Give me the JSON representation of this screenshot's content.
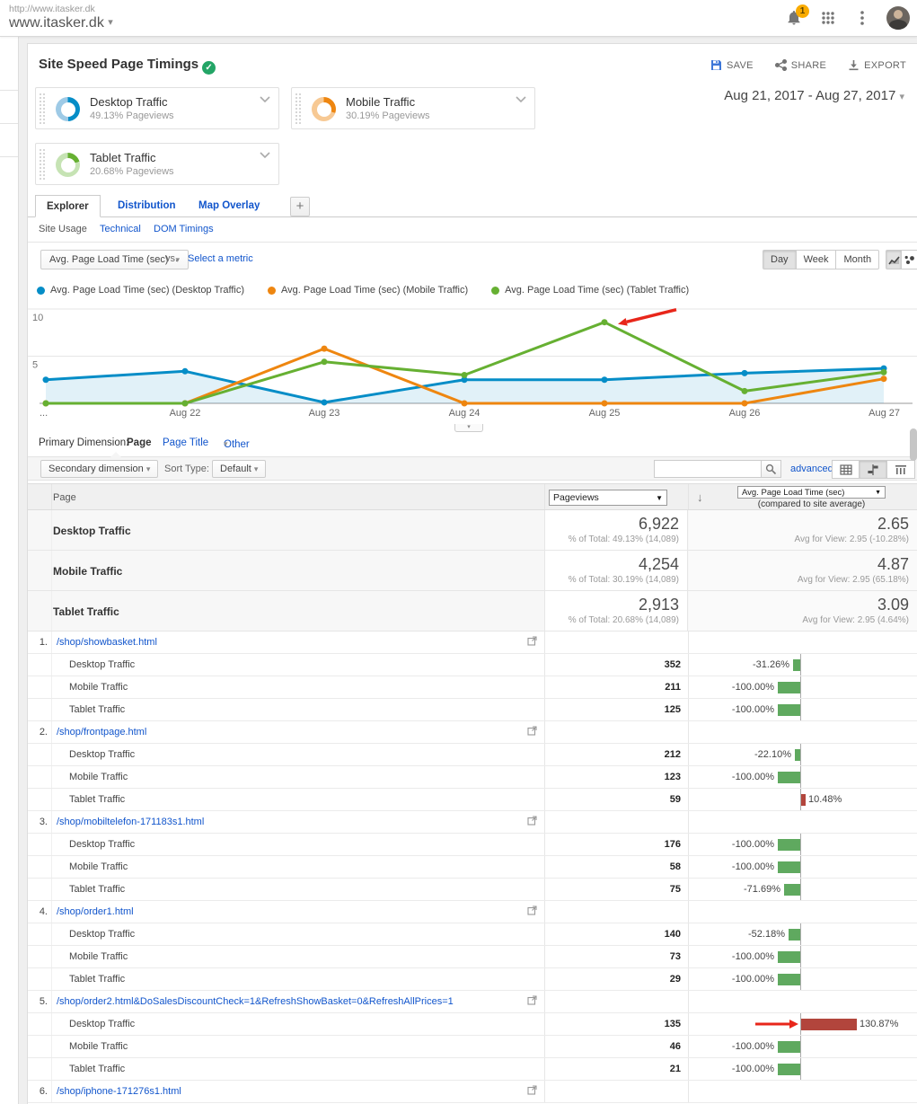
{
  "colors": {
    "link": "#1155cc",
    "bar_positive": "#b2453c",
    "bar_negative": "#5fa95f",
    "annotation_arrow": "#e8261a",
    "notification_badge": "#f9ab00"
  },
  "header": {
    "url": "http://www.itasker.dk",
    "account": "www.itasker.dk",
    "notification_count": "1"
  },
  "report": {
    "title": "Site Speed Page Timings",
    "save_label": "SAVE",
    "share_label": "SHARE",
    "export_label": "EXPORT",
    "date_range": "Aug 21, 2017 - Aug 27, 2017"
  },
  "segments": [
    {
      "name": "Desktop Traffic",
      "detail": "49.13% Pageviews",
      "pct": 49.13,
      "color": "#058dc7",
      "color_light": "#9ecae6"
    },
    {
      "name": "Mobile Traffic",
      "detail": "30.19% Pageviews",
      "pct": 30.19,
      "color": "#ee8610",
      "color_light": "#f7c994"
    },
    {
      "name": "Tablet Traffic",
      "detail": "20.68% Pageviews",
      "pct": 20.68,
      "color": "#66b032",
      "color_light": "#c6e3b4"
    }
  ],
  "add_segment_label": "+",
  "tabs": {
    "explorer": "Explorer",
    "distribution": "Distribution",
    "map_overlay": "Map Overlay"
  },
  "subtabs": {
    "site_usage": "Site Usage",
    "technical": "Technical",
    "dom_timings": "DOM Timings"
  },
  "metric_bar": {
    "metric": "Avg. Page Load Time (sec)",
    "vs_label": "vs.",
    "select_metric": "Select a metric",
    "day": "Day",
    "week": "Week",
    "month": "Month"
  },
  "chart_data": {
    "type": "line",
    "x": [
      "Aug 21",
      "Aug 22",
      "Aug 23",
      "Aug 24",
      "Aug 25",
      "Aug 26",
      "Aug 27"
    ],
    "x_tick_labels": [
      "...",
      "Aug 22",
      "Aug 23",
      "Aug 24",
      "Aug 25",
      "Aug 26",
      "Aug 27"
    ],
    "ylim": [
      0,
      10
    ],
    "yticks": [
      5,
      10
    ],
    "grid": true,
    "legend_position": "top",
    "series": [
      {
        "name": "Avg. Page Load Time (sec) (Desktop Traffic)",
        "color": "#058dc7",
        "area_fill": true,
        "values": [
          2.5,
          3.4,
          0.1,
          2.5,
          2.5,
          3.2,
          3.7
        ]
      },
      {
        "name": "Avg. Page Load Time (sec) (Mobile Traffic)",
        "color": "#ee8610",
        "area_fill": false,
        "values": [
          0,
          0,
          5.8,
          0,
          0,
          0,
          2.6
        ]
      },
      {
        "name": "Avg. Page Load Time (sec) (Tablet Traffic)",
        "color": "#66b032",
        "area_fill": false,
        "values": [
          0,
          0,
          4.4,
          3.0,
          8.6,
          1.3,
          3.3
        ]
      }
    ],
    "annotations": [
      {
        "type": "arrow",
        "series": 2,
        "point": 4,
        "note": "red arrow pointing at Tablet Traffic peak on Aug 25"
      }
    ]
  },
  "dimension_bar": {
    "label": "Primary Dimension:",
    "active": "Page",
    "alt1": "Page Title",
    "alt2": "Other"
  },
  "toolbar": {
    "secondary_dimension": "Secondary dimension",
    "sort_type_label": "Sort Type:",
    "sort_type_value": "Default",
    "search_value": "",
    "advanced_label": "advanced"
  },
  "table": {
    "page_col": "Page",
    "pageviews_col": "Pageviews",
    "avg_col": "Avg. Page Load Time (sec)",
    "avg_note": "(compared to site average)",
    "summary": [
      {
        "name": "Desktop Traffic",
        "pageviews": "6,922",
        "pageviews_sub": "% of Total: 49.13% (14,089)",
        "avg": "2.65",
        "avg_sub": "Avg for View: 2.95 (-10.28%)"
      },
      {
        "name": "Mobile Traffic",
        "pageviews": "4,254",
        "pageviews_sub": "% of Total: 30.19% (14,089)",
        "avg": "4.87",
        "avg_sub": "Avg for View: 2.95 (65.18%)"
      },
      {
        "name": "Tablet Traffic",
        "pageviews": "2,913",
        "pageviews_sub": "% of Total: 20.68% (14,089)",
        "avg": "3.09",
        "avg_sub": "Avg for View: 2.95 (4.64%)"
      }
    ],
    "rows": [
      {
        "index": "1.",
        "url": "/shop/showbasket.html",
        "segments": [
          {
            "name": "Desktop Traffic",
            "pageviews": "352",
            "delta_label": "-31.26%",
            "delta": -31.26
          },
          {
            "name": "Mobile Traffic",
            "pageviews": "211",
            "delta_label": "-100.00%",
            "delta": -100
          },
          {
            "name": "Tablet Traffic",
            "pageviews": "125",
            "delta_label": "-100.00%",
            "delta": -100
          }
        ]
      },
      {
        "index": "2.",
        "url": "/shop/frontpage.html",
        "segments": [
          {
            "name": "Desktop Traffic",
            "pageviews": "212",
            "delta_label": "-22.10%",
            "delta": -22.1
          },
          {
            "name": "Mobile Traffic",
            "pageviews": "123",
            "delta_label": "-100.00%",
            "delta": -100
          },
          {
            "name": "Tablet Traffic",
            "pageviews": "59",
            "delta_label": "10.48%",
            "delta": 10.48
          }
        ]
      },
      {
        "index": "3.",
        "url": "/shop/mobiltelefon-171183s1.html",
        "segments": [
          {
            "name": "Desktop Traffic",
            "pageviews": "176",
            "delta_label": "-100.00%",
            "delta": -100
          },
          {
            "name": "Mobile Traffic",
            "pageviews": "58",
            "delta_label": "-100.00%",
            "delta": -100
          },
          {
            "name": "Tablet Traffic",
            "pageviews": "75",
            "delta_label": "-71.69%",
            "delta": -71.69
          }
        ]
      },
      {
        "index": "4.",
        "url": "/shop/order1.html",
        "segments": [
          {
            "name": "Desktop Traffic",
            "pageviews": "140",
            "delta_label": "-52.18%",
            "delta": -52.18
          },
          {
            "name": "Mobile Traffic",
            "pageviews": "73",
            "delta_label": "-100.00%",
            "delta": -100
          },
          {
            "name": "Tablet Traffic",
            "pageviews": "29",
            "delta_label": "-100.00%",
            "delta": -100
          }
        ]
      },
      {
        "index": "5.",
        "url": "/shop/order2.html&DoSalesDiscountCheck=1&RefreshShowBasket=0&RefreshAllPrices=1",
        "segments": [
          {
            "name": "Desktop Traffic",
            "pageviews": "135",
            "delta_label": "130.87%",
            "delta": 130.87,
            "arrow": true
          },
          {
            "name": "Mobile Traffic",
            "pageviews": "46",
            "delta_label": "-100.00%",
            "delta": -100
          },
          {
            "name": "Tablet Traffic",
            "pageviews": "21",
            "delta_label": "-100.00%",
            "delta": -100
          }
        ]
      },
      {
        "index": "6.",
        "url": "/shop/iphone-171276s1.html",
        "segments": []
      }
    ]
  }
}
